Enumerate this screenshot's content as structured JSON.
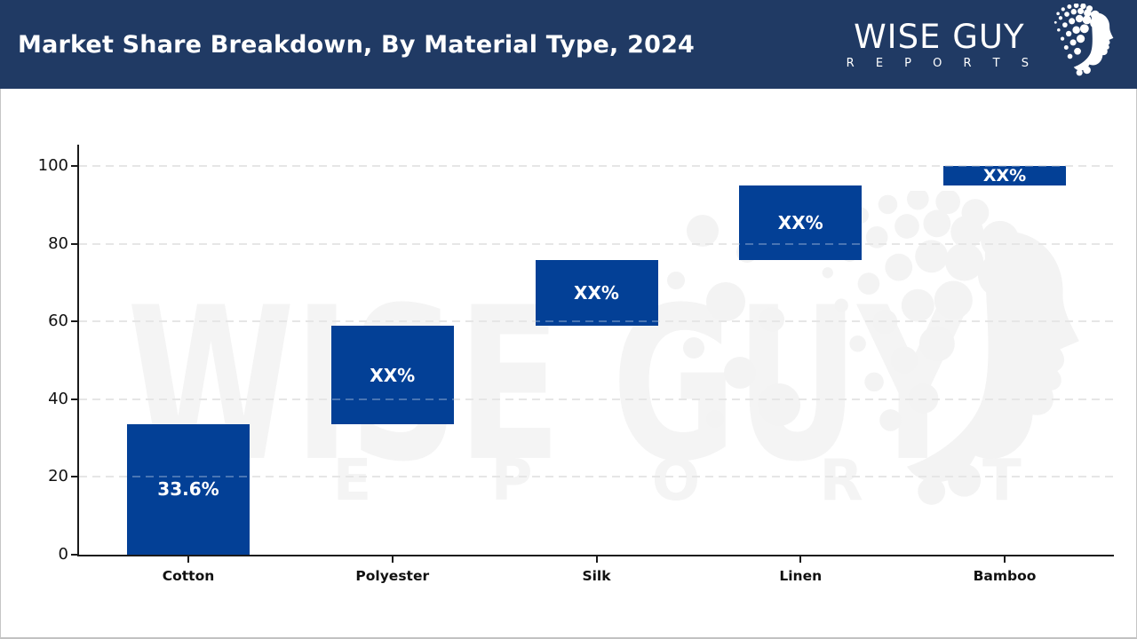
{
  "header": {
    "title": "Market Share Breakdown, By Material Type, 2024",
    "background_color": "#203a64",
    "logo": {
      "primary": "WISE GUY",
      "secondary": "REPORTS"
    }
  },
  "watermark": {
    "primary": "WISE GUY",
    "secondary": "R E P O R T S"
  },
  "chart_data": {
    "type": "bar",
    "subtype": "waterfall",
    "title": "Market Share Breakdown, By Material Type, 2024",
    "categories": [
      "Cotton",
      "Polyester",
      "Silk",
      "Linen",
      "Bamboo"
    ],
    "series": [
      {
        "name": "Market share (%)",
        "segments": [
          {
            "category": "Cotton",
            "label": "33.6%",
            "start": 0,
            "end": 33.6
          },
          {
            "category": "Polyester",
            "label": "XX%",
            "start": 33.6,
            "end": 58.8
          },
          {
            "category": "Silk",
            "label": "XX%",
            "start": 58.8,
            "end": 75.8
          },
          {
            "category": "Linen",
            "label": "XX%",
            "start": 75.8,
            "end": 94.9
          },
          {
            "category": "Bamboo",
            "label": "XX%",
            "start": 94.9,
            "end": 100
          }
        ]
      }
    ],
    "xlabel": "",
    "ylabel": "",
    "ylim": [
      0,
      100
    ],
    "yticks": [
      0,
      20,
      40,
      60,
      80,
      100
    ],
    "grid": {
      "horizontal": true,
      "style": "dashed"
    },
    "legend": "none",
    "bar_color": "#034096",
    "bar_label_color": "#ffffff",
    "axis_color": "#1a1a1a"
  }
}
